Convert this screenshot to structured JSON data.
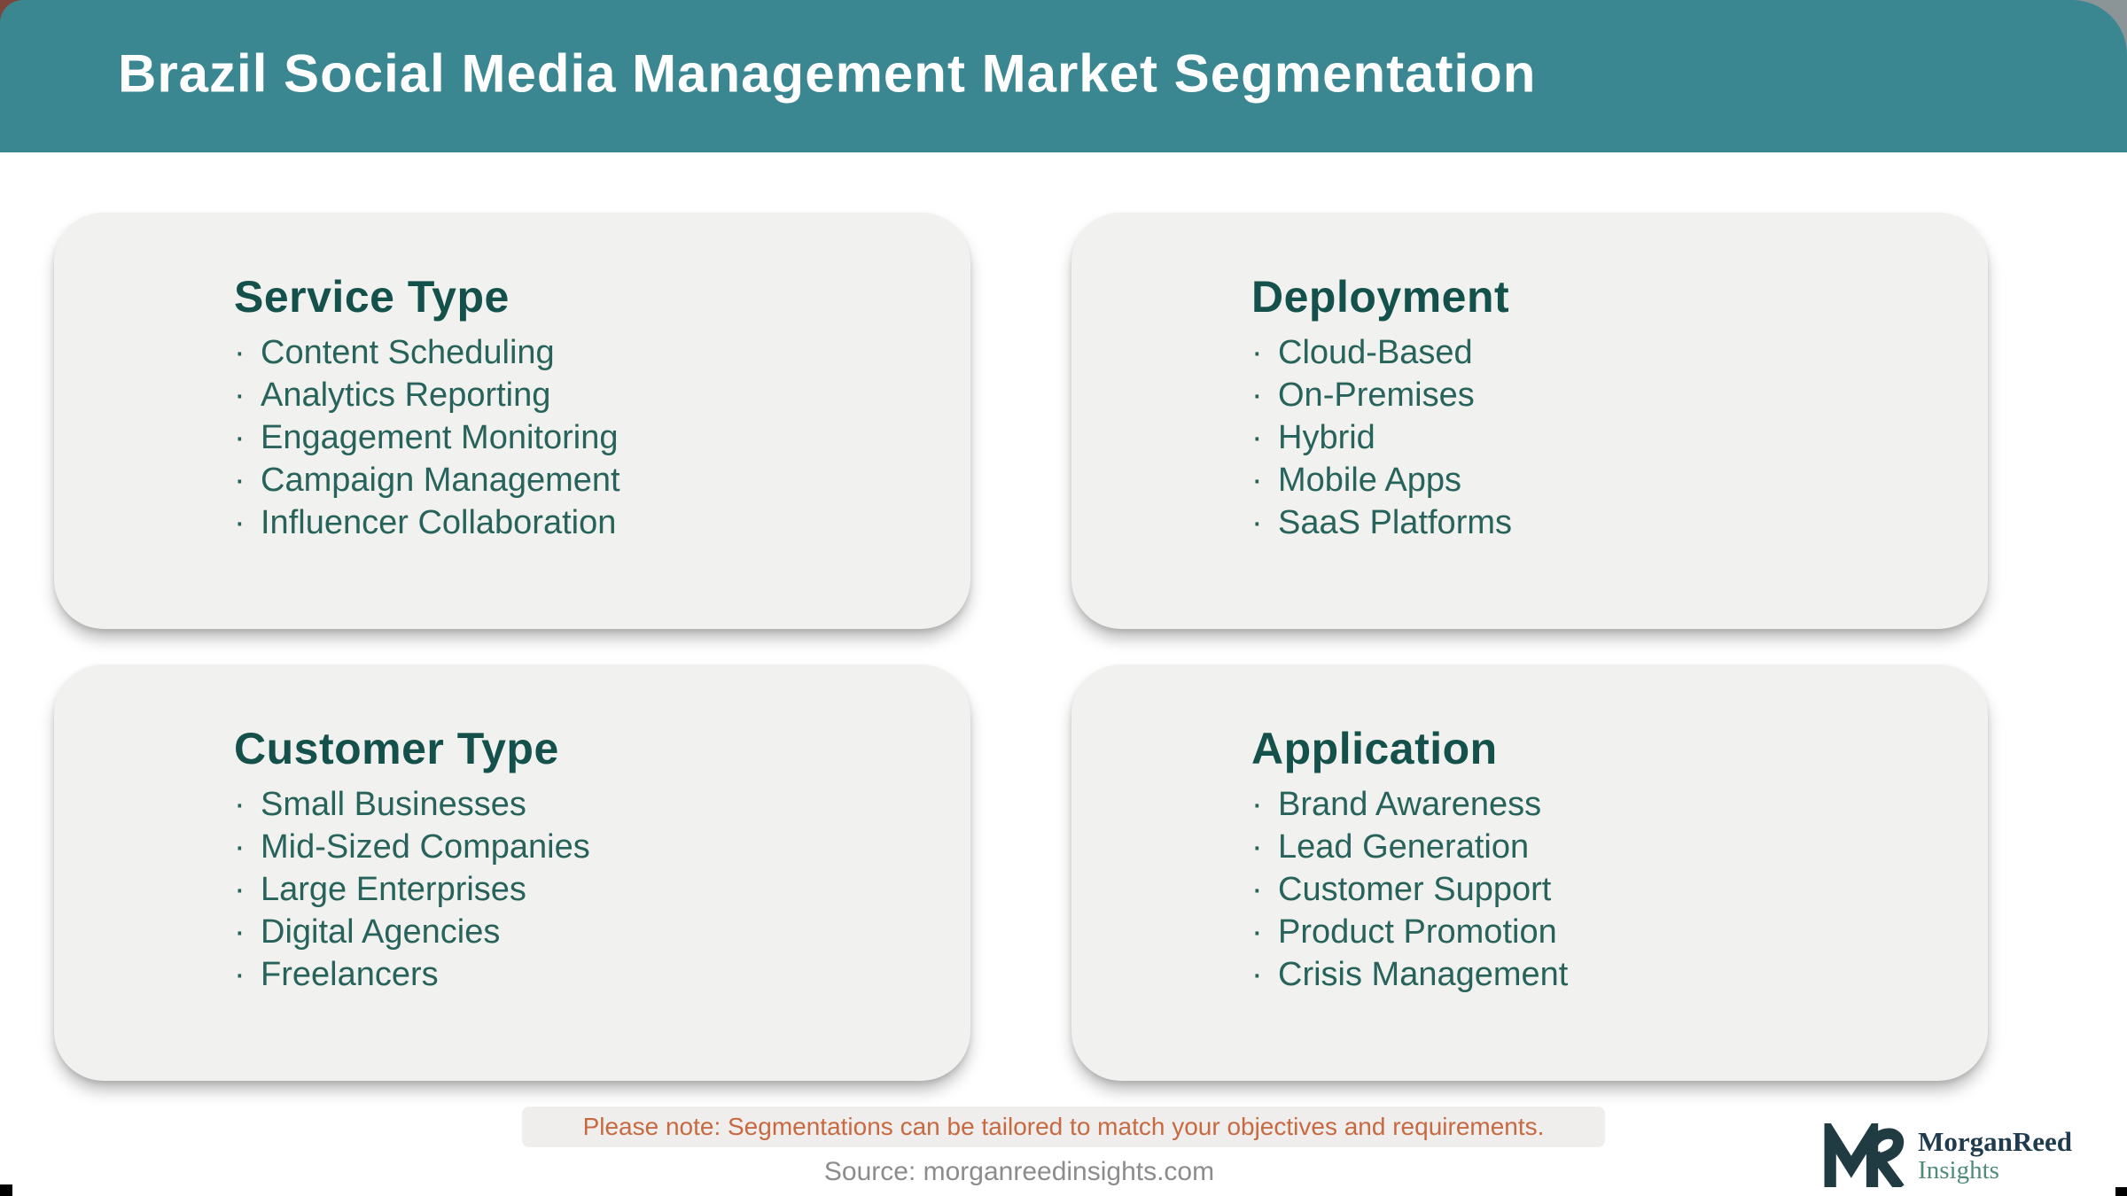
{
  "header": {
    "title": "Brazil Social Media Management Market Segmentation"
  },
  "cards": [
    {
      "title": "Service Type",
      "items": [
        "Content Scheduling",
        "Analytics Reporting",
        "Engagement Monitoring",
        "Campaign Management",
        "Influencer Collaboration"
      ]
    },
    {
      "title": "Deployment",
      "items": [
        "Cloud-Based",
        "On-Premises",
        "Hybrid",
        "Mobile Apps",
        "SaaS Platforms"
      ]
    },
    {
      "title": "Customer Type",
      "items": [
        "Small Businesses",
        "Mid-Sized Companies",
        "Large Enterprises",
        "Digital Agencies",
        "Freelancers"
      ]
    },
    {
      "title": "Application",
      "items": [
        "Brand Awareness",
        "Lead Generation",
        "Customer Support",
        "Product Promotion",
        "Crisis Management"
      ]
    }
  ],
  "bullet": "·",
  "note": {
    "text": "Please note: Segmentations can be tailored to match your objectives and requirements."
  },
  "source": {
    "text": "Source: morganreedinsights.com"
  },
  "logo": {
    "mark": "MR",
    "name_bold": "MorganReed",
    "name_light": "Insights"
  },
  "colors": {
    "header_teal": "#3A8791",
    "heading_teal": "#14514B",
    "item_teal": "#27635A",
    "card_bg": "#F1F1EF",
    "note_bg": "#EFEEEC",
    "note_orange": "#C76A42",
    "source_gray": "#8C8C8C",
    "logo_navy": "#1F3B4D",
    "logo_teal": "#4F8A7B",
    "logo_mark": "#203B42",
    "accent_corner_red": "#7E453C",
    "accent_corner_gray": "#8B9496"
  }
}
